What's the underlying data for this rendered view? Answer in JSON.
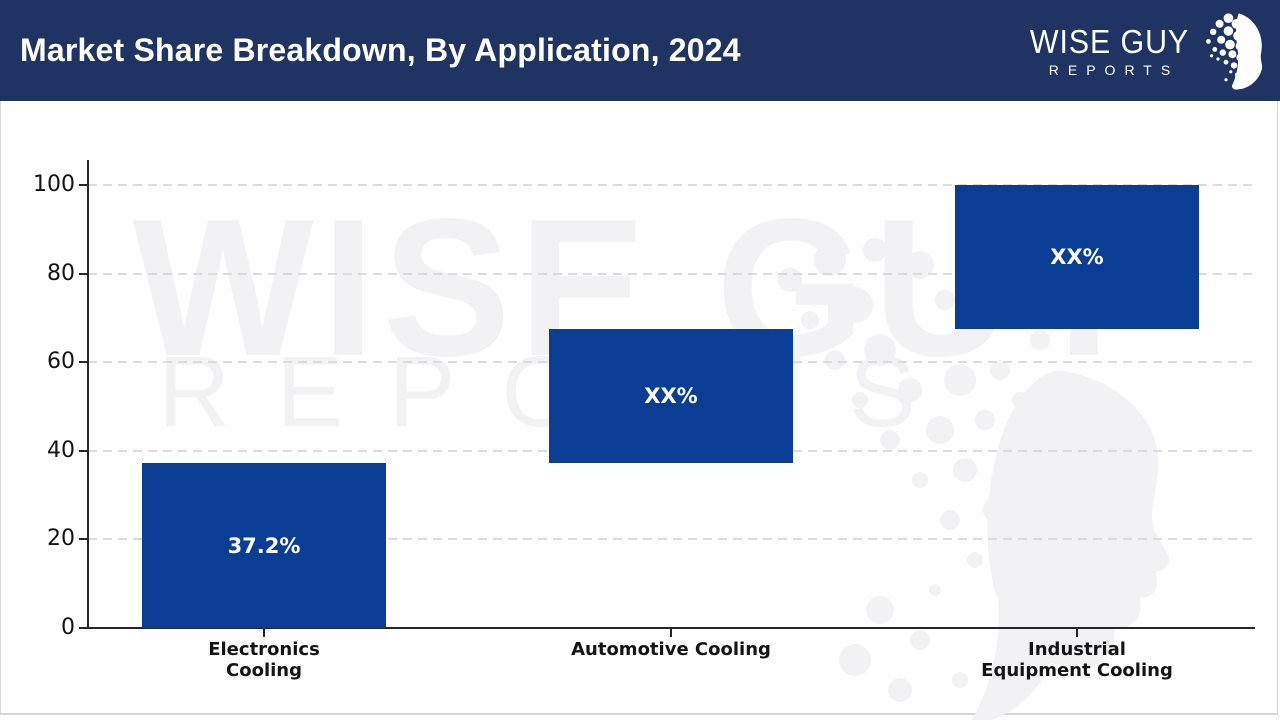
{
  "header": {
    "title": "Market Share Breakdown, By Application, 2024",
    "logo": {
      "line1": "WISE GUY",
      "line2": "REPORTS"
    }
  },
  "watermark": {
    "line1": "WISE GUY",
    "line2": "REPORTS"
  },
  "chart_data": {
    "type": "bar",
    "subtype": "waterfall",
    "title": "Market Share Breakdown, By Application, 2024",
    "unit": "%",
    "categories": [
      "Electronics Cooling",
      "Automotive Cooling",
      "Industrial Equipment Cooling"
    ],
    "category_lines": [
      [
        "Electronics",
        "Cooling"
      ],
      [
        "Automotive Cooling"
      ],
      [
        "Industrial",
        "Equipment Cooling"
      ]
    ],
    "segments": [
      {
        "category": "Electronics Cooling",
        "start": 0,
        "end": 37.2,
        "value": 37.2,
        "label": "37.2%"
      },
      {
        "category": "Automotive Cooling",
        "start": 37.2,
        "end": 67.5,
        "value": 30.3,
        "label": "XX%"
      },
      {
        "category": "Industrial Equipment Cooling",
        "start": 67.5,
        "end": 100,
        "value": 32.5,
        "label": "XX%"
      }
    ],
    "ylim": [
      0,
      105
    ],
    "yticks": [
      0,
      20,
      40,
      60,
      80,
      100
    ],
    "grid": "horizontal-dashed",
    "legend": "none",
    "colors": {
      "bar": "#0a3d94",
      "bar_label": "#ffffff",
      "grid": "#dcdcdc",
      "axis": "#262626",
      "tick_label": "#141414",
      "header_bg": "#1f3462",
      "watermark": "#f2f2f4"
    }
  }
}
